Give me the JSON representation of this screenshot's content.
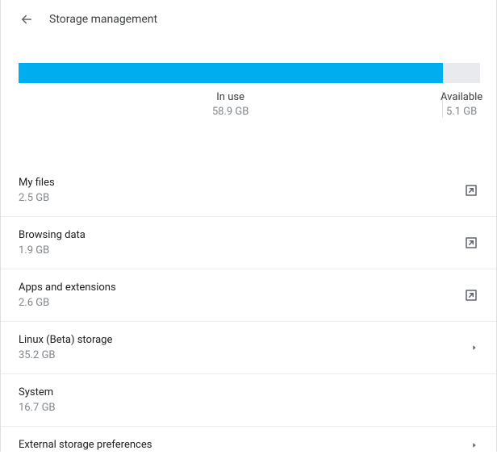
{
  "header": {
    "title": "Storage management"
  },
  "storage_bar": {
    "used_label": "In use",
    "used_value": "58.9 GB",
    "available_label": "Available",
    "available_value": "5.1 GB",
    "used_percent": 92,
    "bar_color": "#00aef0",
    "bar_bg": "#e8eaed"
  },
  "items": [
    {
      "title": "My files",
      "sub": "2.5 GB",
      "icon": "external"
    },
    {
      "title": "Browsing data",
      "sub": "1.9 GB",
      "icon": "external"
    },
    {
      "title": "Apps and extensions",
      "sub": "2.6 GB",
      "icon": "external"
    },
    {
      "title": "Linux (Beta) storage",
      "sub": "35.2 GB",
      "icon": "chevron"
    },
    {
      "title": "System",
      "sub": "16.7 GB",
      "icon": "none"
    },
    {
      "title": "External storage preferences",
      "sub": "",
      "icon": "chevron"
    }
  ]
}
